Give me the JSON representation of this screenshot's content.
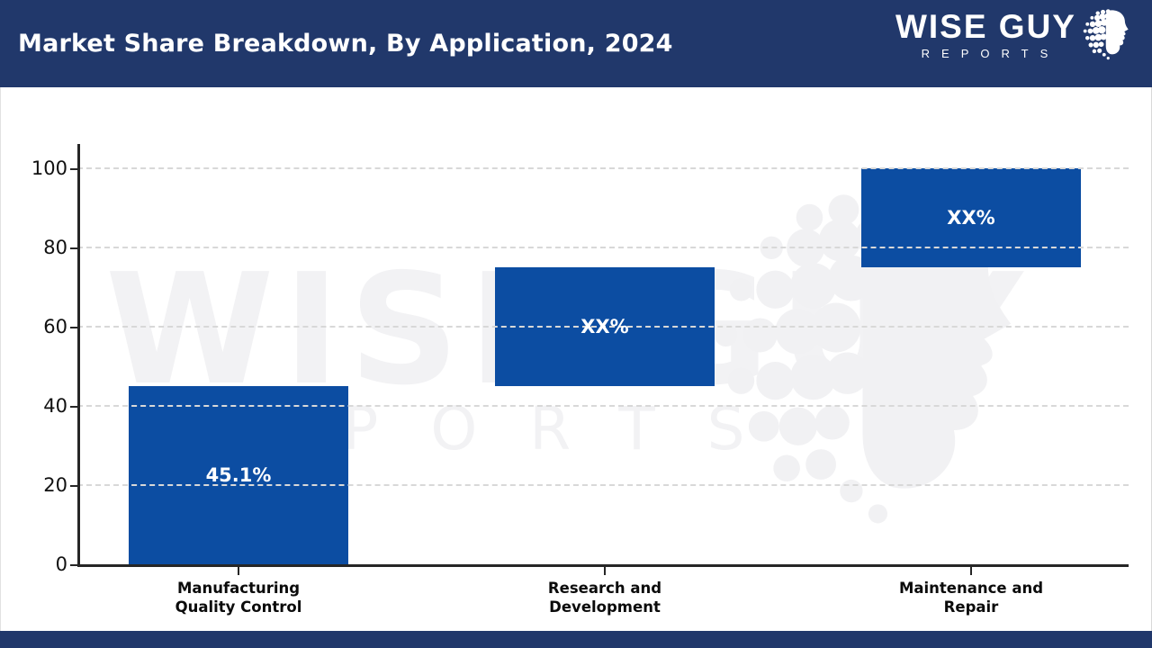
{
  "header": {
    "title": "Market Share Breakdown, By Application, 2024",
    "logo": {
      "line1": "WISE GUY",
      "line2": "REPORTS"
    }
  },
  "watermark": {
    "line1": "WISE GUY",
    "line2": "REPORTS"
  },
  "colors": {
    "header_bg": "#21386B",
    "bar": "#0C4DA2",
    "gridline": "#D8D8D8",
    "axis": "#262626",
    "bar_label": "#FFFFFF",
    "watermark": "#F2F2F4"
  },
  "chart_data": {
    "type": "bar",
    "subtype": "waterfall",
    "title": "Market Share Breakdown, By Application, 2024",
    "categories": [
      "Manufacturing\nQuality Control",
      "Research and\nDevelopment",
      "Maintenance and\nRepair"
    ],
    "segments": [
      {
        "category": "Manufacturing Quality Control",
        "start": 0,
        "end": 45.1,
        "label": "45.1%"
      },
      {
        "category": "Research and Development",
        "start": 45.1,
        "end": 75.1,
        "label": "XX%"
      },
      {
        "category": "Maintenance and Repair",
        "start": 75.1,
        "end": 100,
        "label": "XX%"
      }
    ],
    "ylim": [
      0,
      100
    ],
    "yticks": [
      0,
      20,
      40,
      60,
      80,
      100
    ],
    "grid": "dashed-horizontal",
    "legend": "none",
    "xlabel": "",
    "ylabel": ""
  }
}
